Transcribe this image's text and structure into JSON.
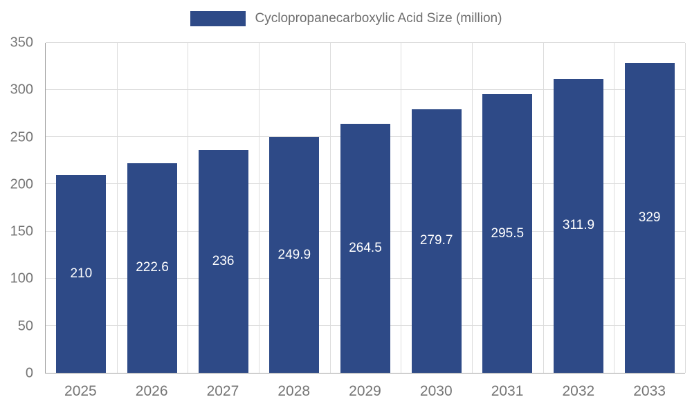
{
  "chart_data": {
    "type": "bar",
    "title": "Cyclopropanecarboxylic Acid Size (million)",
    "categories": [
      "2025",
      "2026",
      "2027",
      "2028",
      "2029",
      "2030",
      "2031",
      "2032",
      "2033"
    ],
    "values": [
      210,
      222.6,
      236,
      249.9,
      264.5,
      279.7,
      295.5,
      311.9,
      329
    ],
    "xlabel": "",
    "ylabel": "",
    "ylim": [
      0,
      350
    ],
    "yticks": [
      0,
      50,
      100,
      150,
      200,
      250,
      300,
      350
    ],
    "grid": true,
    "legend_position": "top",
    "bar_color": "#2e4a87",
    "value_label_color": "#ffffff",
    "tick_label_color": "#757575"
  }
}
